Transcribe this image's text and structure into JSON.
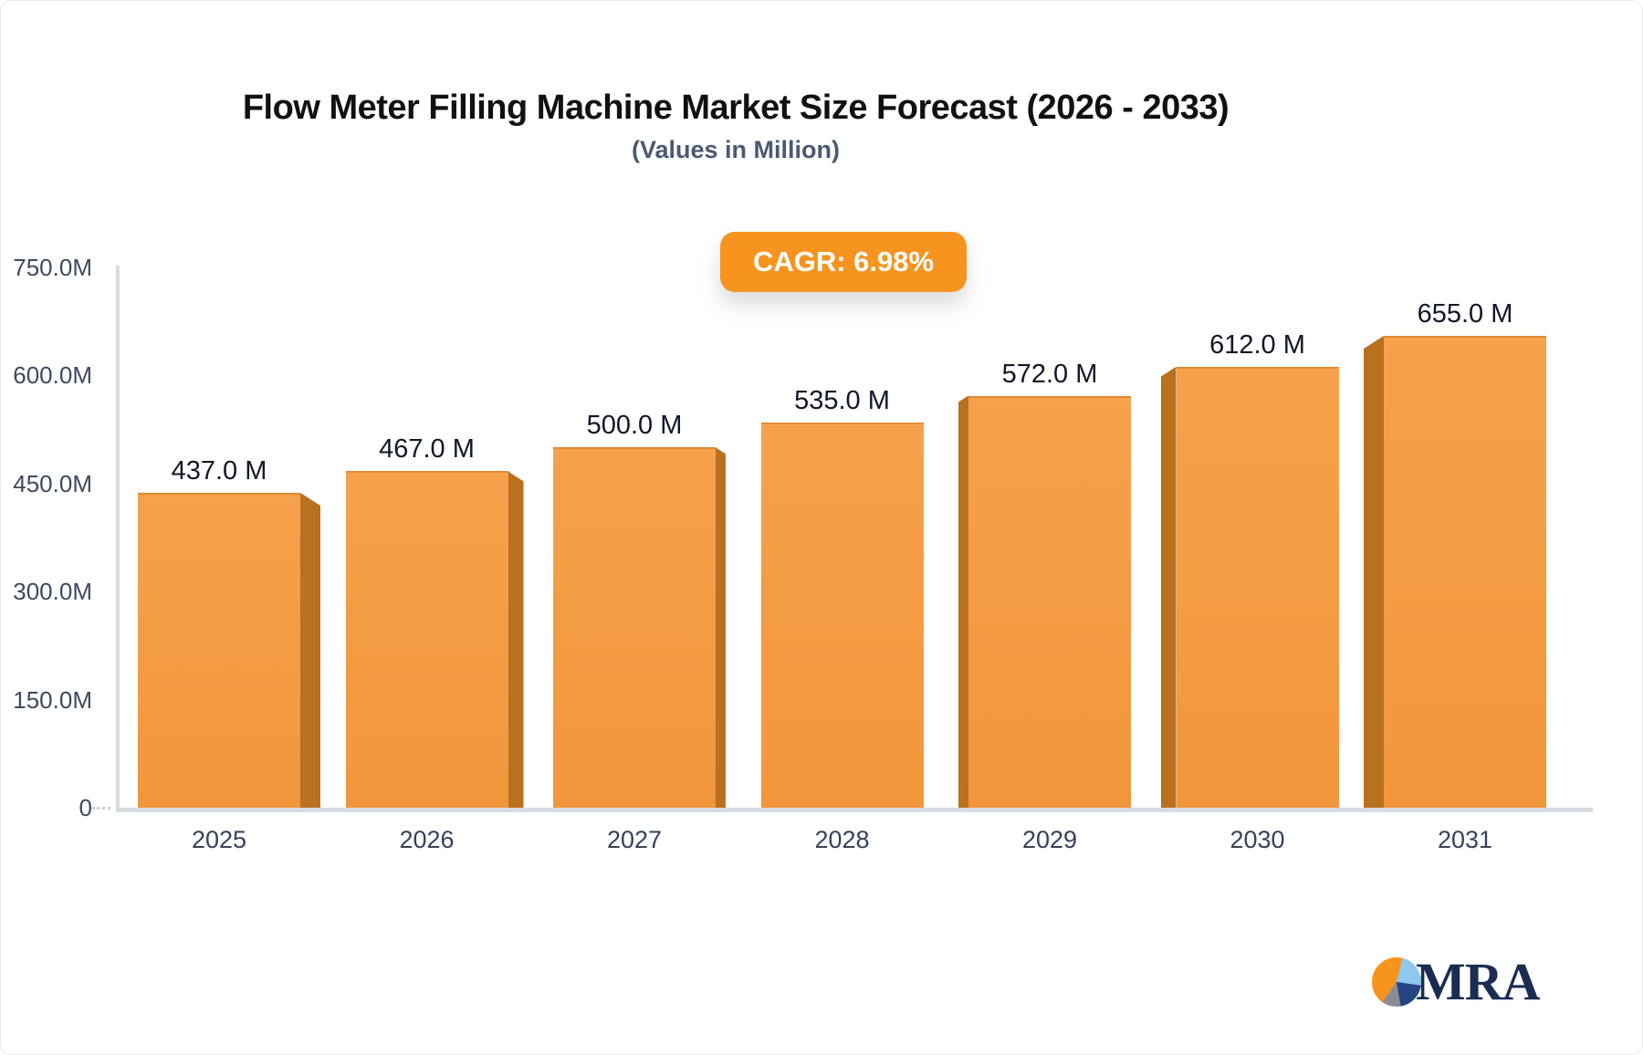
{
  "header": {
    "title": "Flow Meter Filling Machine Market Size Forecast (2026 - 2033)",
    "subtitle": "(Values in Million)",
    "badge_label": "CAGR: 6.98%",
    "badge_color": "#F7941F"
  },
  "chart_data": {
    "type": "bar",
    "title": "Flow Meter Filling Machine Market Size Forecast (2026 - 2033)",
    "subtitle": "(Values in Million)",
    "categories": [
      "2025",
      "2026",
      "2027",
      "2028",
      "2029",
      "2030",
      "2031"
    ],
    "values": [
      437,
      467,
      500,
      535,
      572,
      612,
      655
    ],
    "value_labels": [
      "437.0 M",
      "467.0 M",
      "500.0 M",
      "535.0 M",
      "572.0 M",
      "612.0 M",
      "655.0 M"
    ],
    "unit": "Million",
    "y_ticks": [
      {
        "value": 750,
        "label": "750.0M"
      },
      {
        "value": 600,
        "label": "600.0M"
      },
      {
        "value": 450,
        "label": "450.0M"
      },
      {
        "value": 300,
        "label": "300.0M"
      },
      {
        "value": 150,
        "label": "150.0M"
      },
      {
        "value": 0,
        "label": "0"
      }
    ],
    "ylim": [
      0,
      750
    ],
    "xlabel": "",
    "ylabel": "",
    "grid": false,
    "legend": false,
    "bar_color": "#F49A3E",
    "bar_side_color": "#B9701F",
    "style": "3d-perspective-center"
  },
  "logo": {
    "text": "MRA",
    "pie_colors": [
      "#F7941E",
      "#8EC8EF",
      "#24457F",
      "#8B8B93"
    ]
  }
}
